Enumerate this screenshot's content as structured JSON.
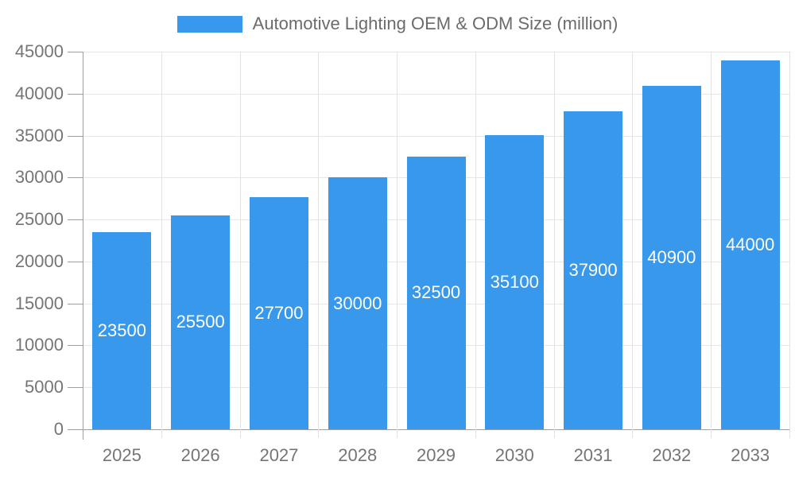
{
  "chart_data": {
    "type": "bar",
    "title": "Automotive Lighting OEM & ODM Size (million)",
    "categories": [
      "2025",
      "2026",
      "2027",
      "2028",
      "2029",
      "2030",
      "2031",
      "2032",
      "2033"
    ],
    "values": [
      23500,
      25500,
      27700,
      30000,
      32500,
      35100,
      37900,
      40900,
      44000
    ],
    "value_labels": [
      "23500",
      "25500",
      "27700",
      "30000",
      "32500",
      "35100",
      "37900",
      "40900",
      "44000"
    ],
    "xlabel": "",
    "ylabel": "",
    "ylim": [
      0,
      45000
    ],
    "yticks": [
      0,
      5000,
      10000,
      15000,
      20000,
      25000,
      30000,
      35000,
      40000,
      45000
    ],
    "grid": true,
    "legend_position": "top",
    "bar_color": "#3898ec",
    "value_label_color": "#ffffff",
    "axis_text_color": "#757575",
    "legend_text_color": "#6b6b6b",
    "gridline_color": "#e6e6e6",
    "axis_line_color": "#9e9e9e"
  }
}
